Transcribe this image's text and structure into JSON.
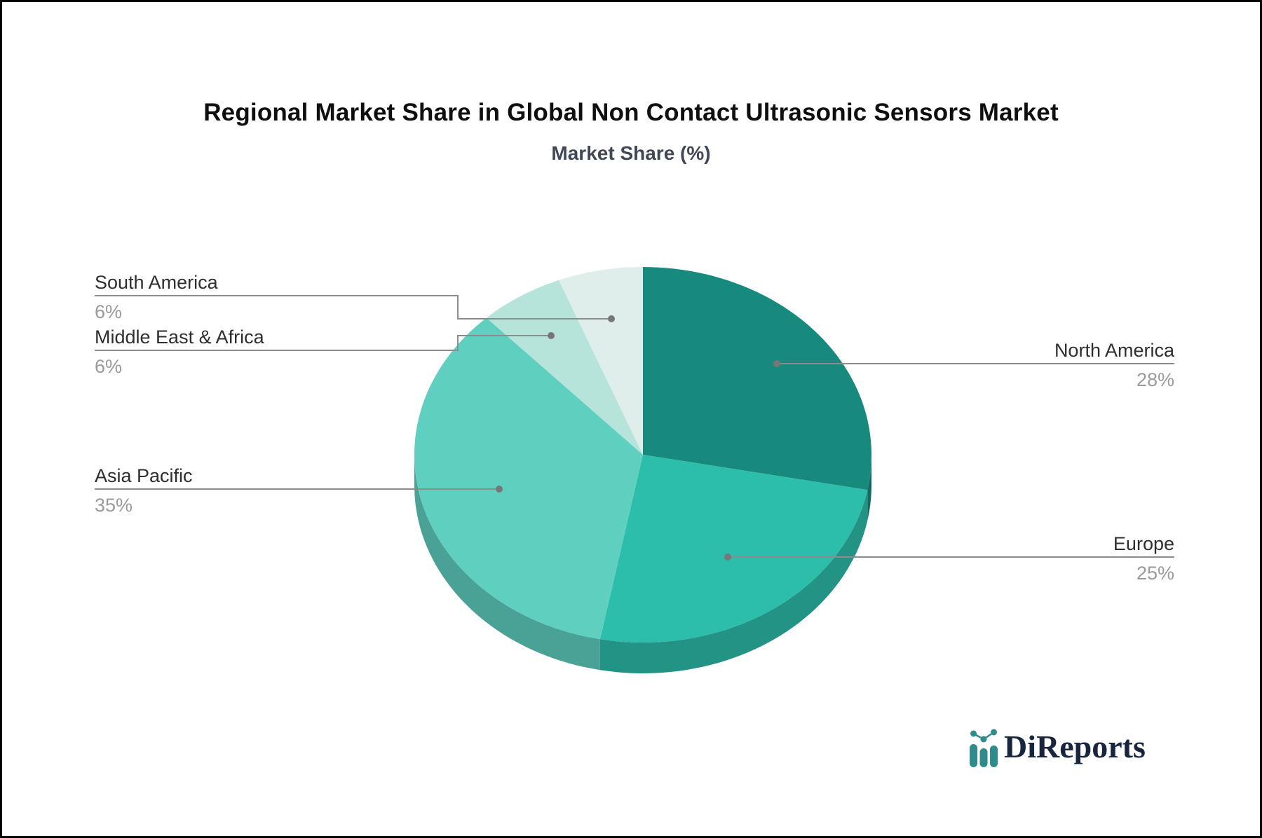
{
  "chart_data": {
    "type": "pie",
    "title": "Regional Market Share in Global Non Contact Ultrasonic Sensors Market",
    "subtitle": "Market Share (%)",
    "value_suffix": "%",
    "direction": "clockwise",
    "start_angle_deg": 0,
    "style_3d": true,
    "legend_position": "callout-labels",
    "slices": [
      {
        "label": "North America",
        "value": 28,
        "pct_label": "28%",
        "color": "#17897d"
      },
      {
        "label": "Europe",
        "value": 25,
        "pct_label": "25%",
        "color": "#2dbdab"
      },
      {
        "label": "Asia Pacific",
        "value": 35,
        "pct_label": "35%",
        "color": "#5fcfc0"
      },
      {
        "label": "Middle East & Africa",
        "value": 6,
        "pct_label": "6%",
        "color": "#b6e4db"
      },
      {
        "label": "South America",
        "value": 6,
        "pct_label": "6%",
        "color": "#dfeeea"
      }
    ]
  },
  "style": {
    "background": "#ffffff",
    "title_color": "#0f0f0f",
    "subtitle_color": "#414855",
    "label_color": "#2e2e2e",
    "pct_color": "#9a9a9a",
    "connector_color": "#8c8c8c",
    "dot_color": "#777777",
    "logo_text_color": "#17263e",
    "logo_accent_color": "#2f8c8b"
  },
  "branding": {
    "logo_text": "DiReports",
    "logo_icon": "bar-line-chart-icon"
  }
}
